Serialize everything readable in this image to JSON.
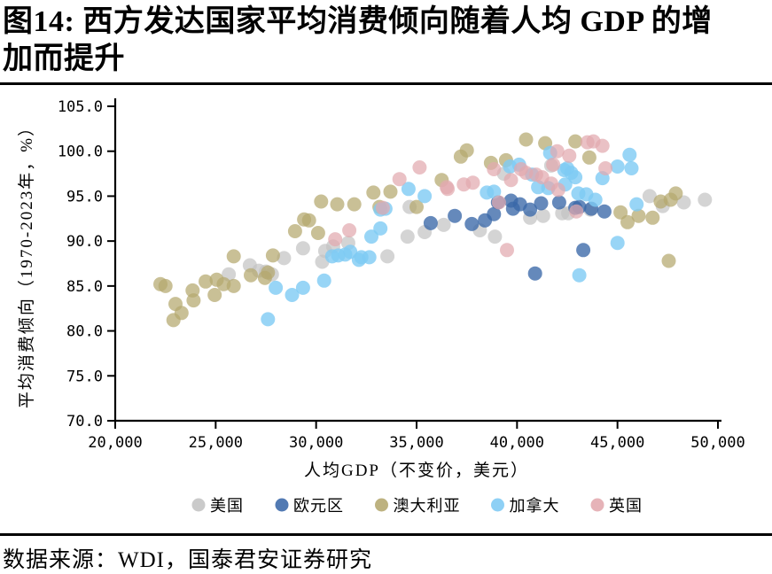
{
  "title": {
    "line1": "图14:  西方发达国家平均消费倾向随着人均 GDP 的增",
    "line2": "加而提升"
  },
  "footer": {
    "source": "数据来源：WDI，国泰君安证券研究"
  },
  "chart_data": {
    "type": "scatter",
    "title": "",
    "xlabel": "人均GDP（不变价，美元）",
    "ylabel": "平均消费倾向（1970-2023年，%）",
    "xlim": [
      20000,
      50000
    ],
    "ylim": [
      70.0,
      105.0
    ],
    "grid": false,
    "legend_position": "bottom",
    "marker": {
      "radius": 8
    },
    "x_ticks": [
      {
        "value": 20000,
        "label": "20,000"
      },
      {
        "value": 25000,
        "label": "25,000"
      },
      {
        "value": 30000,
        "label": "30,000"
      },
      {
        "value": 35000,
        "label": "35,000"
      },
      {
        "value": 40000,
        "label": "40,000"
      },
      {
        "value": 45000,
        "label": "45,000"
      },
      {
        "value": 50000,
        "label": "50,000"
      }
    ],
    "y_ticks": [
      {
        "value": 70,
        "label": "70.0"
      },
      {
        "value": 75,
        "label": "75.0"
      },
      {
        "value": 80,
        "label": "80.0"
      },
      {
        "value": 85,
        "label": "85.0"
      },
      {
        "value": 90,
        "label": "90.0"
      },
      {
        "value": 95,
        "label": "95.0"
      },
      {
        "value": 100,
        "label": "100.0"
      },
      {
        "value": 105,
        "label": "105.0"
      }
    ],
    "series": [
      {
        "name": "美国",
        "key": "us",
        "color": "#c3c3c3",
        "opacity": 0.72,
        "points": [
          [
            25650,
            86.3
          ],
          [
            26700,
            87.3
          ],
          [
            27150,
            86.7
          ],
          [
            27500,
            86.6
          ],
          [
            27800,
            86.3
          ],
          [
            28400,
            88.1
          ],
          [
            29350,
            89.2
          ],
          [
            30300,
            87.7
          ],
          [
            30450,
            88.9
          ],
          [
            30850,
            89.4
          ],
          [
            31600,
            89.8
          ],
          [
            33550,
            88.3
          ],
          [
            34550,
            90.5
          ],
          [
            34650,
            93.8
          ],
          [
            35400,
            91.0
          ],
          [
            36350,
            91.8
          ],
          [
            38150,
            91.2
          ],
          [
            38900,
            90.5
          ],
          [
            39350,
            97.5
          ],
          [
            40650,
            92.6
          ],
          [
            41300,
            92.8
          ],
          [
            41700,
            98.4
          ],
          [
            42250,
            93.1
          ],
          [
            42550,
            93.1
          ],
          [
            43650,
            93.5
          ],
          [
            46600,
            95.0
          ],
          [
            47250,
            93.9
          ],
          [
            48300,
            94.3
          ],
          [
            49350,
            94.6
          ]
        ]
      },
      {
        "name": "欧元区",
        "key": "euro-area",
        "color": "#3a68a8",
        "opacity": 0.78,
        "points": [
          [
            35700,
            92.0
          ],
          [
            36900,
            92.8
          ],
          [
            37750,
            91.9
          ],
          [
            38400,
            92.3
          ],
          [
            38850,
            93.0
          ],
          [
            39050,
            94.3
          ],
          [
            39700,
            94.5
          ],
          [
            39800,
            93.6
          ],
          [
            40150,
            94.1
          ],
          [
            40650,
            93.5
          ],
          [
            40900,
            86.4
          ],
          [
            41200,
            94.2
          ],
          [
            42100,
            94.3
          ],
          [
            42900,
            93.7
          ],
          [
            43100,
            93.8
          ],
          [
            43300,
            89.0
          ],
          [
            43700,
            93.6
          ],
          [
            44350,
            93.3
          ]
        ]
      },
      {
        "name": "澳大利亚",
        "key": "australia",
        "color": "#b4a76e",
        "opacity": 0.72,
        "points": [
          [
            22250,
            85.2
          ],
          [
            22500,
            85.0
          ],
          [
            22900,
            81.2
          ],
          [
            23000,
            83.0
          ],
          [
            23300,
            82.0
          ],
          [
            23850,
            84.5
          ],
          [
            23900,
            83.4
          ],
          [
            24500,
            85.5
          ],
          [
            24950,
            84.0
          ],
          [
            25050,
            85.7
          ],
          [
            25400,
            85.2
          ],
          [
            25900,
            85.0
          ],
          [
            25900,
            88.3
          ],
          [
            26750,
            86.2
          ],
          [
            27450,
            85.9
          ],
          [
            27600,
            86.5
          ],
          [
            27850,
            88.4
          ],
          [
            28950,
            91.1
          ],
          [
            29400,
            92.4
          ],
          [
            29650,
            92.3
          ],
          [
            30100,
            90.9
          ],
          [
            30250,
            94.4
          ],
          [
            31050,
            94.1
          ],
          [
            31900,
            94.1
          ],
          [
            32850,
            95.4
          ],
          [
            33150,
            93.8
          ],
          [
            33700,
            95.5
          ],
          [
            35000,
            93.8
          ],
          [
            36250,
            96.8
          ],
          [
            37200,
            99.4
          ],
          [
            37500,
            100.1
          ],
          [
            38700,
            98.7
          ],
          [
            39450,
            99.0
          ],
          [
            40450,
            101.3
          ],
          [
            41400,
            100.9
          ],
          [
            42900,
            101.1
          ],
          [
            43600,
            99.3
          ],
          [
            45150,
            93.2
          ],
          [
            45500,
            92.1
          ],
          [
            46050,
            92.8
          ],
          [
            46750,
            92.6
          ],
          [
            47150,
            94.4
          ],
          [
            47650,
            94.6
          ],
          [
            47900,
            95.3
          ],
          [
            47550,
            87.8
          ]
        ]
      },
      {
        "name": "加拿大",
        "key": "canada",
        "color": "#7ecaf4",
        "opacity": 0.8,
        "points": [
          [
            27600,
            81.3
          ],
          [
            27990,
            84.8
          ],
          [
            28800,
            84.0
          ],
          [
            29350,
            84.8
          ],
          [
            30400,
            85.6
          ],
          [
            30800,
            88.3
          ],
          [
            31100,
            88.4
          ],
          [
            31450,
            88.5
          ],
          [
            31700,
            88.8
          ],
          [
            32130,
            87.9
          ],
          [
            32250,
            88.2
          ],
          [
            32650,
            88.2
          ],
          [
            32750,
            90.5
          ],
          [
            33200,
            93.5
          ],
          [
            33200,
            91.4
          ],
          [
            33450,
            93.6
          ],
          [
            34600,
            95.8
          ],
          [
            35400,
            95.0
          ],
          [
            38500,
            95.4
          ],
          [
            38850,
            95.5
          ],
          [
            39650,
            98.3
          ],
          [
            40100,
            98.5
          ],
          [
            40750,
            97.4
          ],
          [
            41050,
            96.0
          ],
          [
            41550,
            95.9
          ],
          [
            41650,
            99.8
          ],
          [
            42350,
            97.9
          ],
          [
            42500,
            98.1
          ],
          [
            42700,
            97.6
          ],
          [
            42900,
            97.1
          ],
          [
            42400,
            96.3
          ],
          [
            43050,
            95.3
          ],
          [
            43100,
            86.2
          ],
          [
            43450,
            95.2
          ],
          [
            43900,
            94.6
          ],
          [
            44250,
            97.0
          ],
          [
            45000,
            98.3
          ],
          [
            45000,
            89.8
          ],
          [
            45600,
            99.6
          ],
          [
            45700,
            98.1
          ],
          [
            45950,
            94.1
          ]
        ]
      },
      {
        "name": "英国",
        "key": "uk",
        "color": "#e2a9ae",
        "opacity": 0.72,
        "points": [
          [
            30950,
            90.2
          ],
          [
            31650,
            91.2
          ],
          [
            33320,
            93.7
          ],
          [
            34150,
            96.9
          ],
          [
            35150,
            98.2
          ],
          [
            36500,
            96.0
          ],
          [
            36550,
            95.8
          ],
          [
            37350,
            96.3
          ],
          [
            37800,
            96.5
          ],
          [
            38850,
            98.0
          ],
          [
            39100,
            94.3
          ],
          [
            39500,
            89.0
          ],
          [
            39700,
            96.8
          ],
          [
            40200,
            98.0
          ],
          [
            40450,
            97.6
          ],
          [
            40950,
            97.4
          ],
          [
            41250,
            97.1
          ],
          [
            41700,
            96.4
          ],
          [
            41800,
            98.5
          ],
          [
            42000,
            100.0
          ],
          [
            42050,
            95.7
          ],
          [
            42600,
            99.5
          ],
          [
            42950,
            93.3
          ],
          [
            43500,
            101.0
          ],
          [
            43800,
            101.1
          ],
          [
            44250,
            100.6
          ],
          [
            44400,
            98.1
          ]
        ]
      }
    ]
  }
}
